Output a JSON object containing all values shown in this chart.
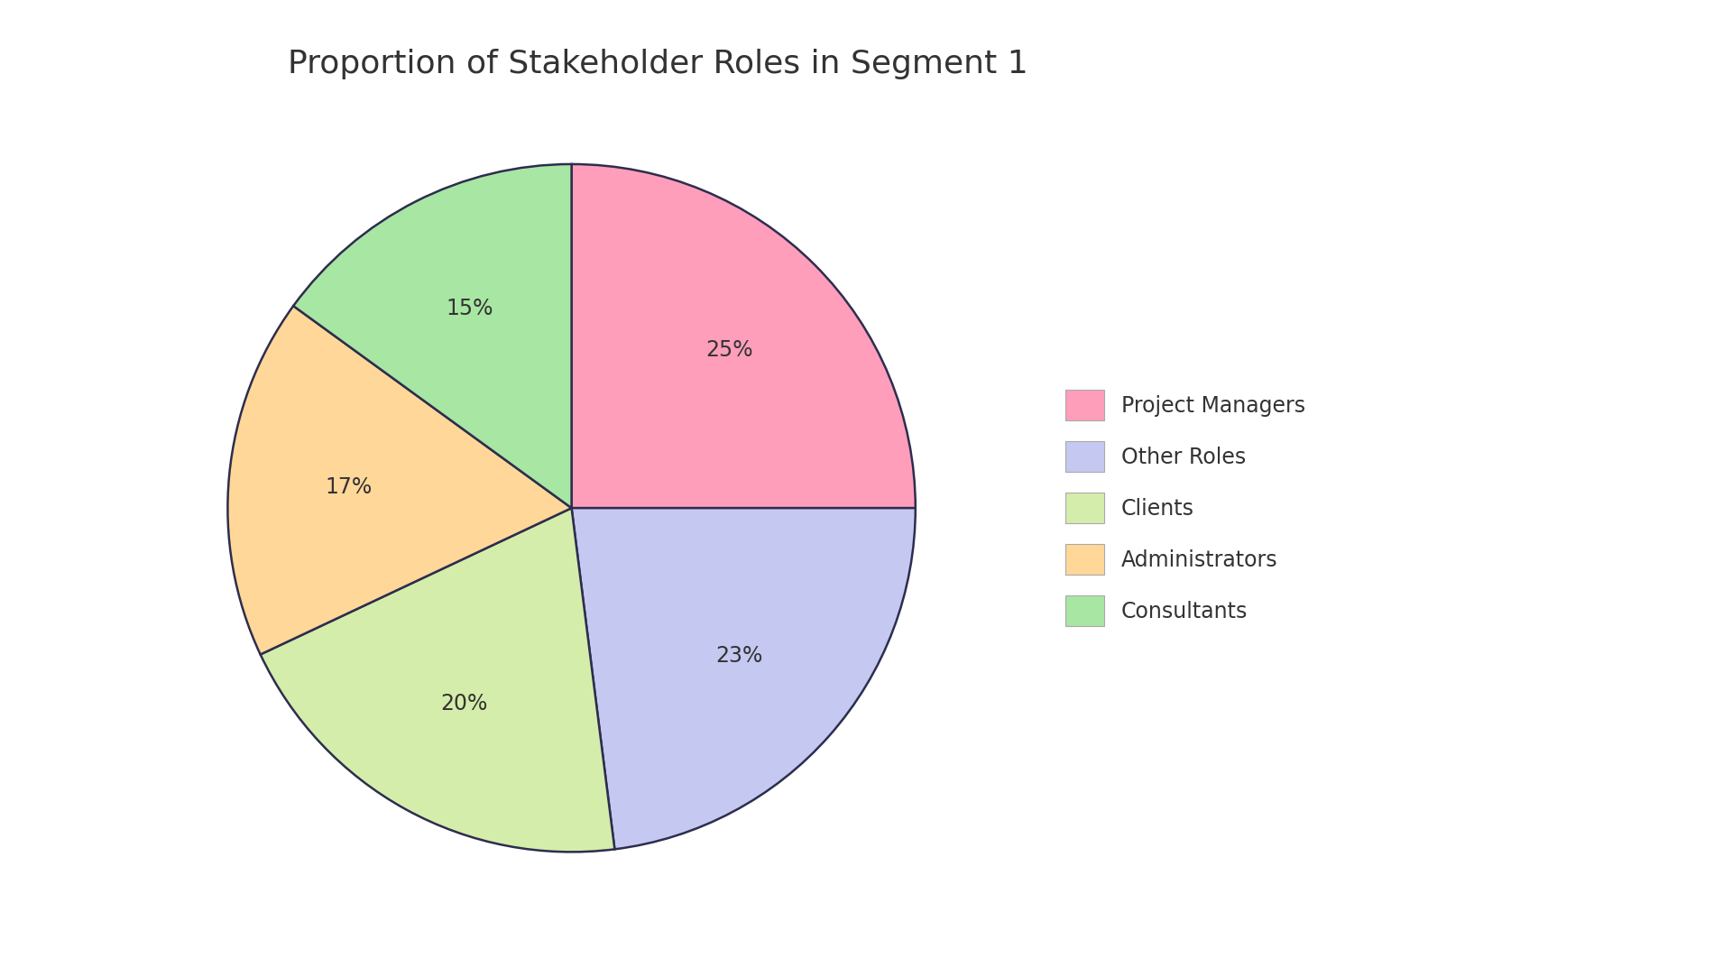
{
  "title": "Proportion of Stakeholder Roles in Segment 1",
  "title_fontsize": 26,
  "slices": [
    {
      "label": "Project Managers",
      "value": 25,
      "color": "#FF9EBB"
    },
    {
      "label": "Other Roles",
      "value": 23,
      "color": "#C5C8F0"
    },
    {
      "label": "Clients",
      "value": 20,
      "color": "#D4EDAA"
    },
    {
      "label": "Administrators",
      "value": 17,
      "color": "#FFD799"
    },
    {
      "label": "Consultants",
      "value": 15,
      "color": "#A8E6A3"
    }
  ],
  "edge_color": "#2D2D4E",
  "edge_width": 1.8,
  "start_angle": 90,
  "autopct_fontsize": 17,
  "legend_fontsize": 17,
  "background_color": "#FFFFFF",
  "text_color": "#333333",
  "pctdistance": 0.65
}
